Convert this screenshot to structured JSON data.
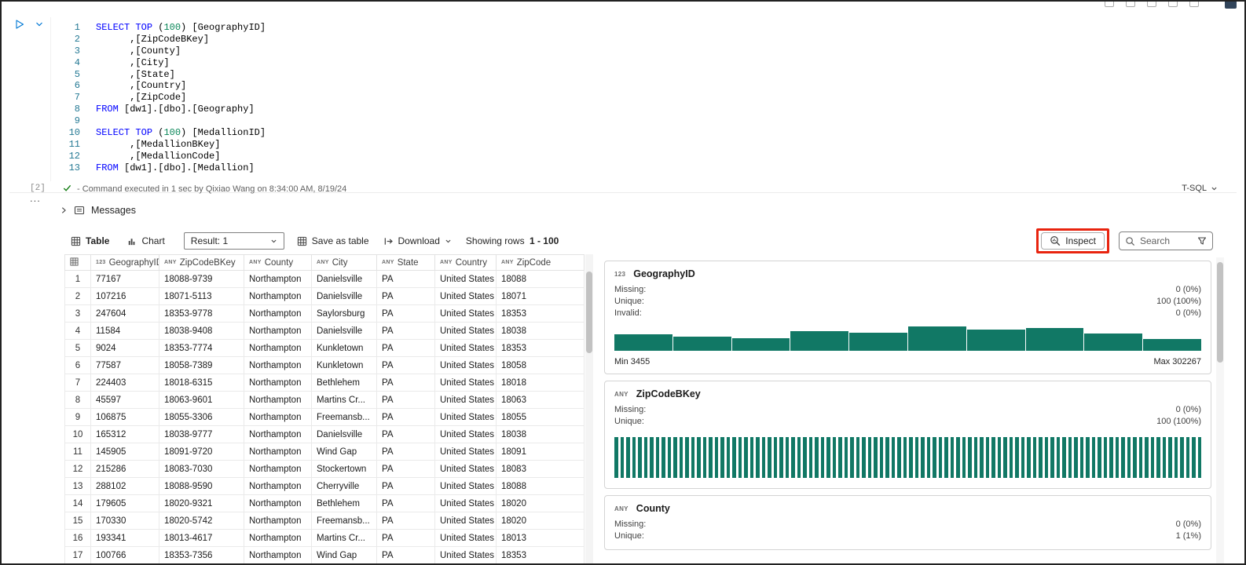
{
  "colors": {
    "bar_teal": "#117865",
    "annotation_red": "#e8240f",
    "keyword_blue": "#0000ff",
    "accent_blue": "#0078d4",
    "success_green": "#0e7a0e"
  },
  "top_toolbar": {
    "icons": [
      "table-icon",
      "clear-outputs-icon",
      "export-icon",
      "expand-icon",
      "more-options-icon"
    ]
  },
  "editor": {
    "cell_more": "...",
    "status": {
      "execution_count": "[2]",
      "message": "- Command executed in 1 sec by Qixiao Wang on 8:34:00 AM, 8/19/24",
      "language": "T-SQL"
    },
    "lines": [
      {
        "n": "1",
        "segs": [
          [
            "SELECT",
            "kw"
          ],
          [
            " ",
            "pl"
          ],
          [
            "TOP",
            "kw"
          ],
          [
            " (",
            "pl"
          ],
          [
            "100",
            "num"
          ],
          [
            ") [GeographyID]",
            "pl"
          ]
        ]
      },
      {
        "n": "2",
        "segs": [
          [
            "      ,[ZipCodeBKey]",
            "pl"
          ]
        ]
      },
      {
        "n": "3",
        "segs": [
          [
            "      ,[County]",
            "pl"
          ]
        ]
      },
      {
        "n": "4",
        "segs": [
          [
            "      ,[City]",
            "pl"
          ]
        ]
      },
      {
        "n": "5",
        "segs": [
          [
            "      ,[State]",
            "pl"
          ]
        ]
      },
      {
        "n": "6",
        "segs": [
          [
            "      ,[Country]",
            "pl"
          ]
        ]
      },
      {
        "n": "7",
        "segs": [
          [
            "      ,[ZipCode]",
            "pl"
          ]
        ]
      },
      {
        "n": "8",
        "segs": [
          [
            "FROM",
            "kw"
          ],
          [
            " [dw1].[dbo].[Geography]",
            "pl"
          ]
        ]
      },
      {
        "n": "9",
        "segs": []
      },
      {
        "n": "10",
        "segs": [
          [
            "SELECT",
            "kw"
          ],
          [
            " ",
            "pl"
          ],
          [
            "TOP",
            "kw"
          ],
          [
            " (",
            "pl"
          ],
          [
            "100",
            "num"
          ],
          [
            ") [MedallionID]",
            "pl"
          ]
        ]
      },
      {
        "n": "11",
        "segs": [
          [
            "      ,[MedallionBKey]",
            "pl"
          ]
        ]
      },
      {
        "n": "12",
        "segs": [
          [
            "      ,[MedallionCode]",
            "pl"
          ]
        ]
      },
      {
        "n": "13",
        "segs": [
          [
            "FROM",
            "kw"
          ],
          [
            " [dw1].[dbo].[Medallion]",
            "pl"
          ]
        ]
      }
    ]
  },
  "messages": {
    "label": "Messages"
  },
  "results": {
    "toolbar": {
      "table_tab": "Table",
      "chart_tab": "Chart",
      "result_select": "Result: 1",
      "save_as_table": "Save as table",
      "download": "Download",
      "showing_rows_prefix": "Showing rows",
      "showing_rows_range": "1 - 100",
      "inspect": "Inspect",
      "search_placeholder": "Search"
    },
    "table": {
      "columns": [
        {
          "icon": "grid",
          "label": ""
        },
        {
          "icon": "123",
          "label": "GeographyID"
        },
        {
          "icon": "ANY",
          "label": "ZipCodeBKey"
        },
        {
          "icon": "ANY",
          "label": "County"
        },
        {
          "icon": "ANY",
          "label": "City"
        },
        {
          "icon": "ANY",
          "label": "State"
        },
        {
          "icon": "ANY",
          "label": "Country"
        },
        {
          "icon": "ANY",
          "label": "ZipCode"
        }
      ],
      "rows": [
        [
          "77167",
          "18088-9739",
          "Northampton",
          "Danielsville",
          "PA",
          "United States",
          "18088"
        ],
        [
          "107216",
          "18071-5113",
          "Northampton",
          "Danielsville",
          "PA",
          "United States",
          "18071"
        ],
        [
          "247604",
          "18353-9778",
          "Northampton",
          "Saylorsburg",
          "PA",
          "United States",
          "18353"
        ],
        [
          "11584",
          "18038-9408",
          "Northampton",
          "Danielsville",
          "PA",
          "United States",
          "18038"
        ],
        [
          "9024",
          "18353-7774",
          "Northampton",
          "Kunkletown",
          "PA",
          "United States",
          "18353"
        ],
        [
          "77587",
          "18058-7389",
          "Northampton",
          "Kunkletown",
          "PA",
          "United States",
          "18058"
        ],
        [
          "224403",
          "18018-6315",
          "Northampton",
          "Bethlehem",
          "PA",
          "United States",
          "18018"
        ],
        [
          "45597",
          "18063-9601",
          "Northampton",
          "Martins Cr...",
          "PA",
          "United States",
          "18063"
        ],
        [
          "106875",
          "18055-3306",
          "Northampton",
          "Freemansb...",
          "PA",
          "United States",
          "18055"
        ],
        [
          "165312",
          "18038-9777",
          "Northampton",
          "Danielsville",
          "PA",
          "United States",
          "18038"
        ],
        [
          "145905",
          "18091-9720",
          "Northampton",
          "Wind Gap",
          "PA",
          "United States",
          "18091"
        ],
        [
          "215286",
          "18083-7030",
          "Northampton",
          "Stockertown",
          "PA",
          "United States",
          "18083"
        ],
        [
          "288102",
          "18088-9590",
          "Northampton",
          "Cherryville",
          "PA",
          "United States",
          "18088"
        ],
        [
          "179605",
          "18020-9321",
          "Northampton",
          "Bethlehem",
          "PA",
          "United States",
          "18020"
        ],
        [
          "170330",
          "18020-5742",
          "Northampton",
          "Freemansb...",
          "PA",
          "United States",
          "18020"
        ],
        [
          "193341",
          "18013-4617",
          "Northampton",
          "Martins Cr...",
          "PA",
          "United States",
          "18013"
        ],
        [
          "100766",
          "18353-7356",
          "Northampton",
          "Wind Gap",
          "PA",
          "United States",
          "18353"
        ]
      ]
    }
  },
  "inspect": {
    "cards": [
      {
        "type": "123",
        "title": "GeographyID",
        "stats": [
          {
            "label": "Missing:",
            "value": "0 (0%)"
          },
          {
            "label": "Unique:",
            "value": "100 (100%)"
          },
          {
            "label": "Invalid:",
            "value": "0 (0%)"
          }
        ],
        "chart": {
          "kind": "histogram",
          "bars": [
            62,
            52,
            48,
            75,
            68,
            92,
            78,
            85,
            66,
            45
          ],
          "footer_left": "Min 3455",
          "footer_right": "Max 302267"
        }
      },
      {
        "type": "ANY",
        "title": "ZipCodeBKey",
        "stats": [
          {
            "label": "Missing:",
            "value": "0 (0%)"
          },
          {
            "label": "Unique:",
            "value": "100 (100%)"
          }
        ],
        "chart": {
          "kind": "value-bars",
          "count": 100
        }
      },
      {
        "type": "ANY",
        "title": "County",
        "stats": [
          {
            "label": "Missing:",
            "value": "0 (0%)"
          },
          {
            "label": "Unique:",
            "value": "1 (1%)"
          }
        ],
        "chart": null
      }
    ]
  }
}
